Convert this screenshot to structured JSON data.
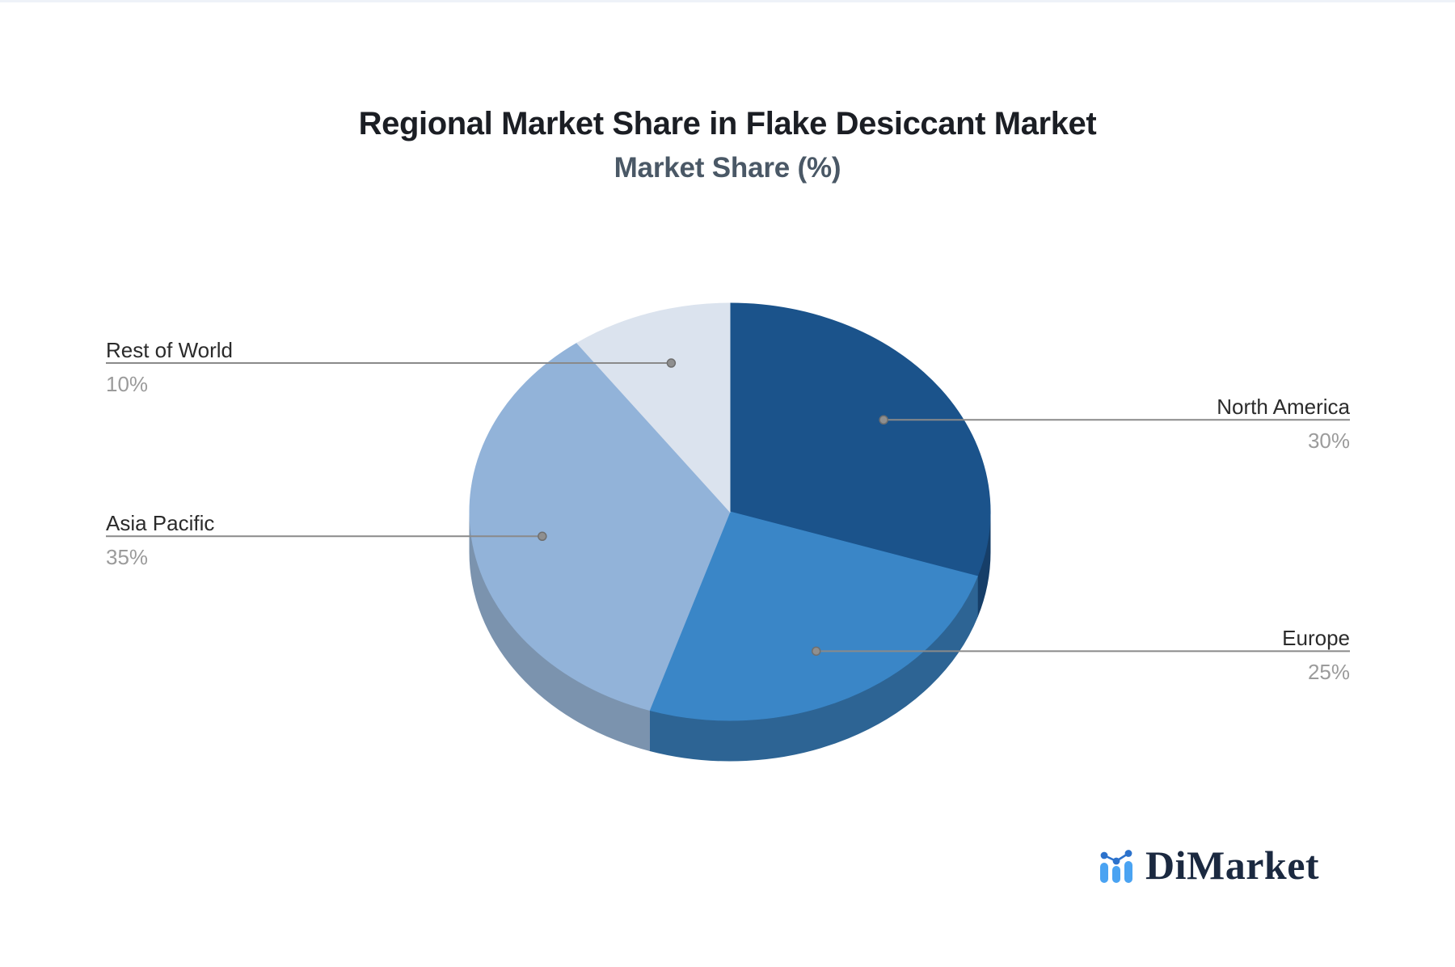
{
  "title": "Regional Market Share in Flake Desiccant Market",
  "subtitle": "Market Share (%)",
  "colors": {
    "background": "#ffffff",
    "title_text": "#1b1e24",
    "subtitle_text": "#4a5866",
    "label_text": "#2b2b2b",
    "percent_text": "#9b9b9b",
    "leader_line": "#8a8a8a",
    "leader_dot": "#8f8f8f",
    "top_strip": "#eef2f8"
  },
  "branding": {
    "name": "DiMarket",
    "text_color": "#1b2940",
    "icon_bar_color": "#4aa3f2",
    "icon_line_color": "#2c72cc"
  },
  "chart_data": {
    "type": "pie",
    "title": "Regional Market Share in Flake Desiccant Market",
    "subtitle": "Market Share (%)",
    "unit": "%",
    "style": "3d-pie",
    "start_angle": "top",
    "direction": "clockwise",
    "legend_position": "leader-labels",
    "slices": [
      {
        "label": "North America",
        "value": 30,
        "display": "30%",
        "color": "#1b538b",
        "side_color": "#163e68",
        "label_side": "right"
      },
      {
        "label": "Europe",
        "value": 25,
        "display": "25%",
        "color": "#3a86c7",
        "side_color": "#2d6494",
        "label_side": "right"
      },
      {
        "label": "Asia Pacific",
        "value": 35,
        "display": "35%",
        "color": "#92b3d9",
        "side_color": "#7b93ae",
        "label_side": "left"
      },
      {
        "label": "Rest of World",
        "value": 10,
        "display": "10%",
        "color": "#dbe3ee",
        "side_color": "#b9c5d7",
        "label_side": "left"
      }
    ]
  }
}
